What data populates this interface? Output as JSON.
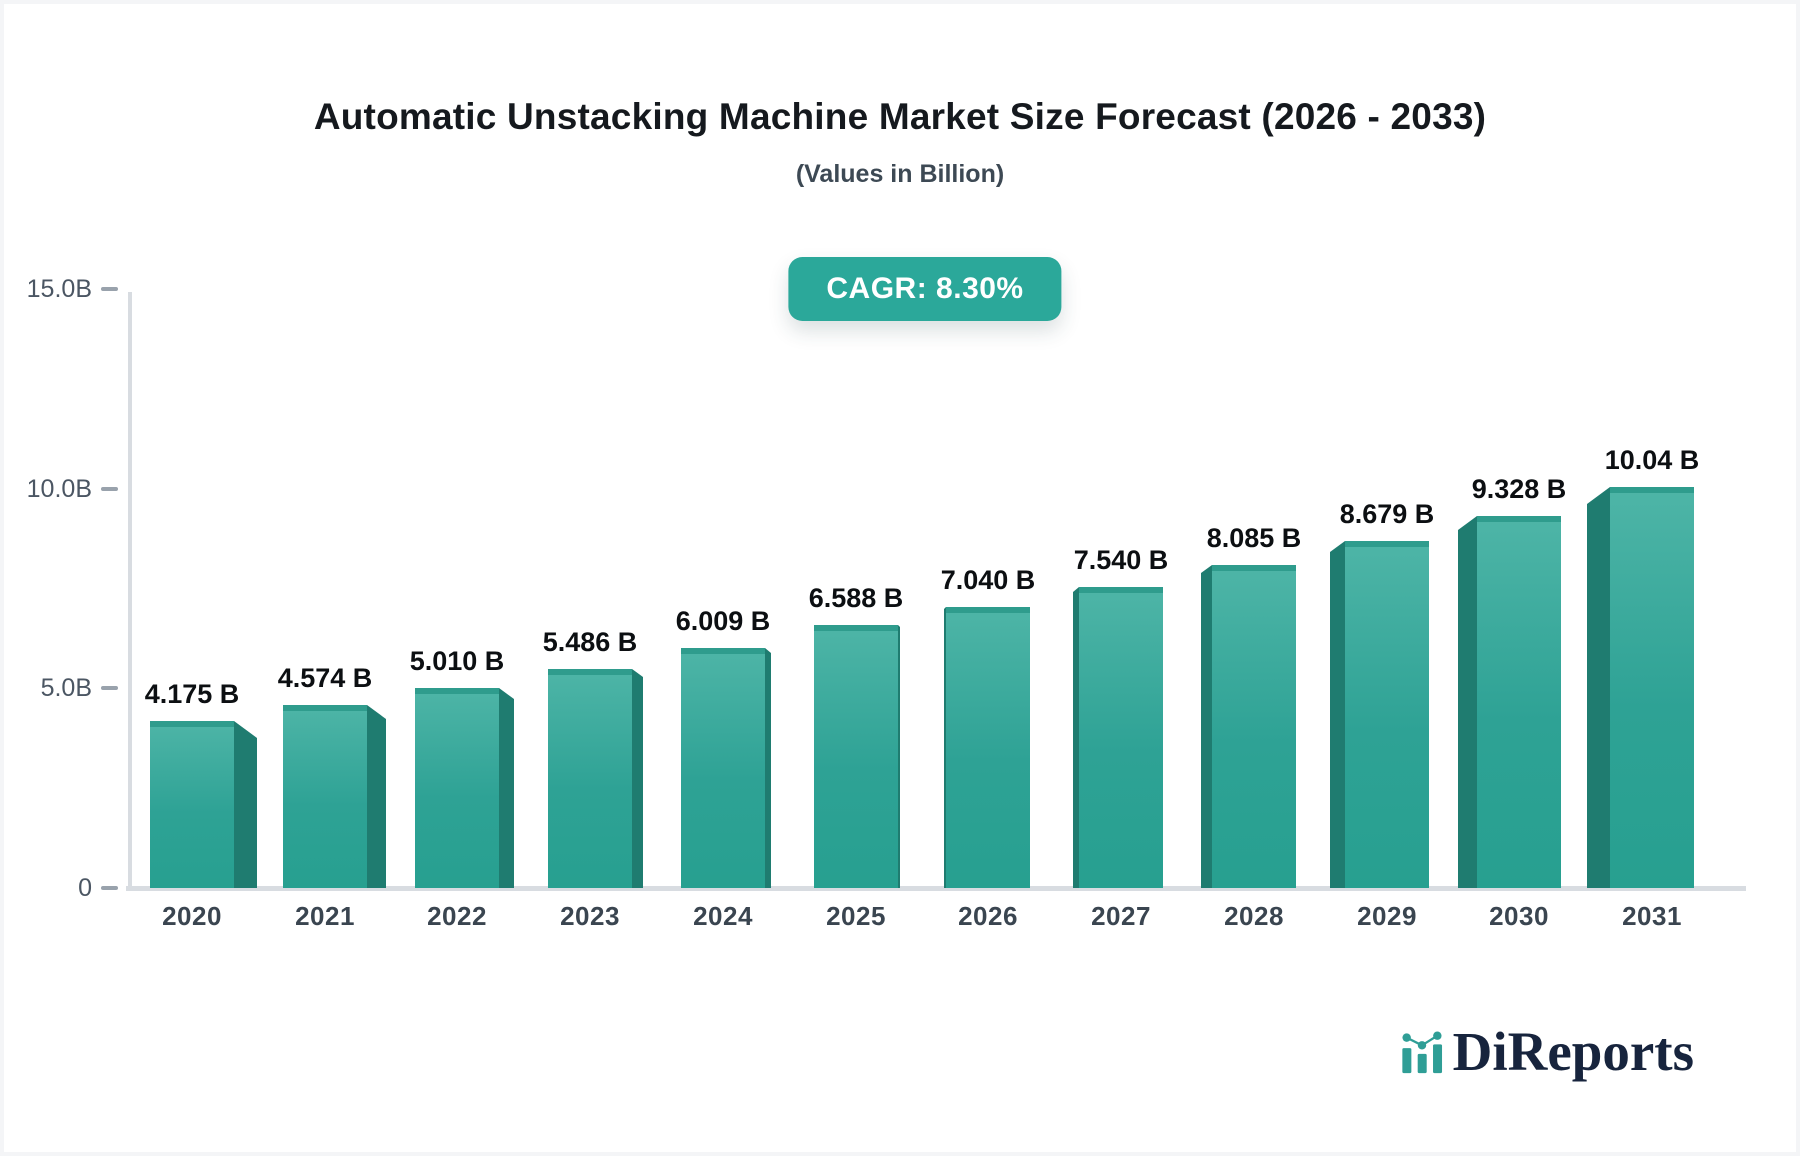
{
  "header": {
    "title": "Automatic Unstacking Machine Market Size Forecast (2026 - 2033)",
    "subtitle": "(Values in Billion)"
  },
  "badge": {
    "label": "CAGR: 8.30%"
  },
  "chart_data": {
    "type": "bar",
    "title": "Automatic Unstacking Machine Market Size Forecast (2026 - 2033)",
    "subtitle": "(Values in Billion)",
    "cagr": "8.30%",
    "categories": [
      "2020",
      "2021",
      "2022",
      "2023",
      "2024",
      "2025",
      "2026",
      "2027",
      "2028",
      "2029",
      "2030",
      "2031"
    ],
    "values": [
      4.175,
      4.574,
      5.01,
      5.486,
      6.009,
      6.588,
      7.04,
      7.54,
      8.085,
      8.679,
      9.328,
      10.04
    ],
    "value_labels": [
      "4.175 B",
      "4.574 B",
      "5.010 B",
      "5.486 B",
      "6.009 B",
      "6.588 B",
      "7.040 B",
      "7.540 B",
      "8.085 B",
      "8.679 B",
      "9.328 B",
      "10.04 B"
    ],
    "xlabel": "",
    "ylabel": "",
    "ylim": [
      0,
      15
    ],
    "grid": false,
    "legend": "none",
    "y_ticks": [
      {
        "value": 0,
        "label": "0"
      },
      {
        "value": 5,
        "label": "5.0B"
      },
      {
        "value": 10,
        "label": "10.0B"
      },
      {
        "value": 15,
        "label": "15.0B"
      }
    ],
    "bar_style": "3d",
    "colors": {
      "bar_face_top": "#4eb5a7",
      "bar_face_bottom": "#27a090",
      "bar_side": "#1f7c70",
      "bar_top": "#2f9c8d",
      "axis_line": "#d8dce1",
      "tick_label": "#4b5663",
      "category_label": "#3a4550",
      "value_label": "#0c0f12",
      "badge_background": "#2ba89a",
      "badge_text": "#ffffff"
    }
  },
  "logo": {
    "text": "DiReports",
    "icon": "mini-bar-chart-icon",
    "icon_color": "#2f9e96",
    "text_color": "#17243d"
  }
}
